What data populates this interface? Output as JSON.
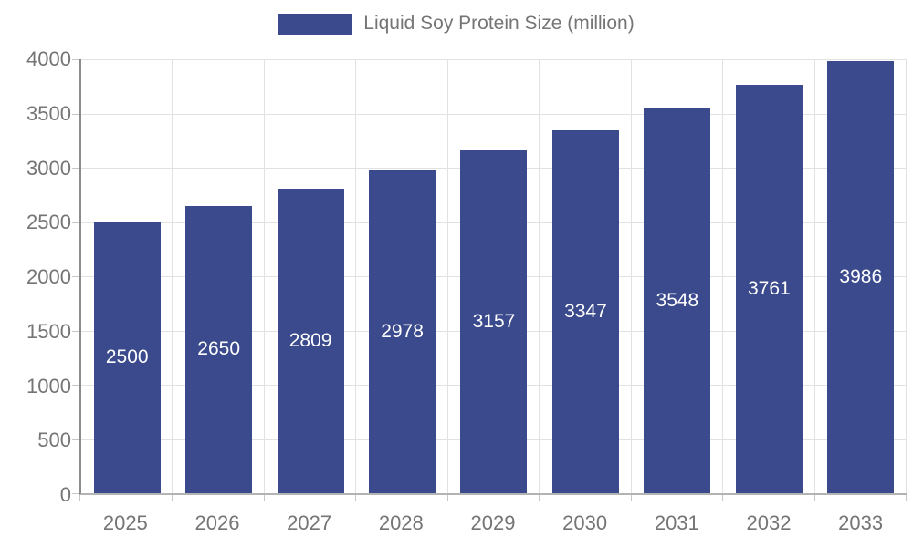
{
  "legend": {
    "label": "Liquid Soy Protein Size (million)",
    "swatch_color": "#3a4a8c"
  },
  "chart_data": {
    "type": "bar",
    "title": "",
    "xlabel": "",
    "ylabel": "",
    "categories": [
      "2025",
      "2026",
      "2027",
      "2028",
      "2029",
      "2030",
      "2031",
      "2032",
      "2033"
    ],
    "series": [
      {
        "name": "Liquid Soy Protein Size (million)",
        "values": [
          2500,
          2650,
          2809,
          2978,
          3157,
          3347,
          3548,
          3761,
          3986
        ]
      }
    ],
    "bar_labels": [
      "2500",
      "2650",
      "2809",
      "2978",
      "3157",
      "3347",
      "3548",
      "3761",
      "3986"
    ],
    "ylim": [
      0,
      4000
    ],
    "yticks": [
      0,
      500,
      1000,
      1500,
      2000,
      2500,
      3000,
      3500,
      4000
    ],
    "grid": true,
    "legend_position": "top",
    "bar_color": "#3a4a8c",
    "bar_label_color": "#ffffff",
    "axis_text_color": "#757575",
    "gridline_color": "#e2e2e2"
  }
}
